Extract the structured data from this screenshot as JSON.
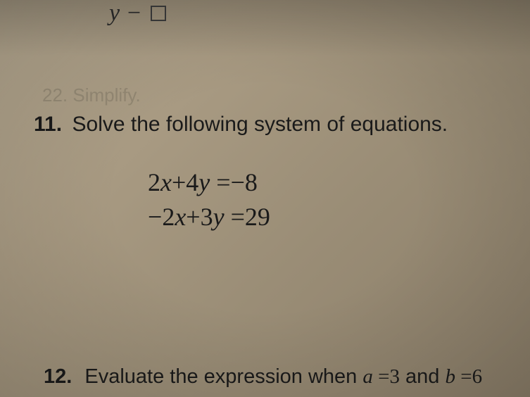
{
  "top_fragment": {
    "expr": "y −"
  },
  "ghost": {
    "text": "22. Simplify."
  },
  "q11": {
    "number": "11.",
    "prompt": "Solve the following system of equations.",
    "eq1": {
      "lhs_coef1": "2",
      "var1": "x",
      "op1": "+",
      "lhs_coef2": "4",
      "var2": "y",
      "eq": "=",
      "rhs": "−8"
    },
    "eq2": {
      "neg": "−",
      "lhs_coef1": "2",
      "var1": "x",
      "op1": "+",
      "lhs_coef2": "3",
      "var2": "y",
      "eq": "=",
      "rhs": "29"
    }
  },
  "q12": {
    "number": "12.",
    "prompt_prefix": "Evaluate the expression when ",
    "var_a": "a",
    "eq1": " =",
    "val_a": "3",
    "and": " and ",
    "var_b": "b",
    "eq2": " =",
    "val_b_partial": "6"
  },
  "style": {
    "page_bg": "#a89a82",
    "text_color": "#1a1a1a",
    "ghost_color": "rgba(80,75,65,0.25)",
    "heading_fontsize": 30,
    "equation_fontsize": 36,
    "q12_fontsize": 29
  }
}
